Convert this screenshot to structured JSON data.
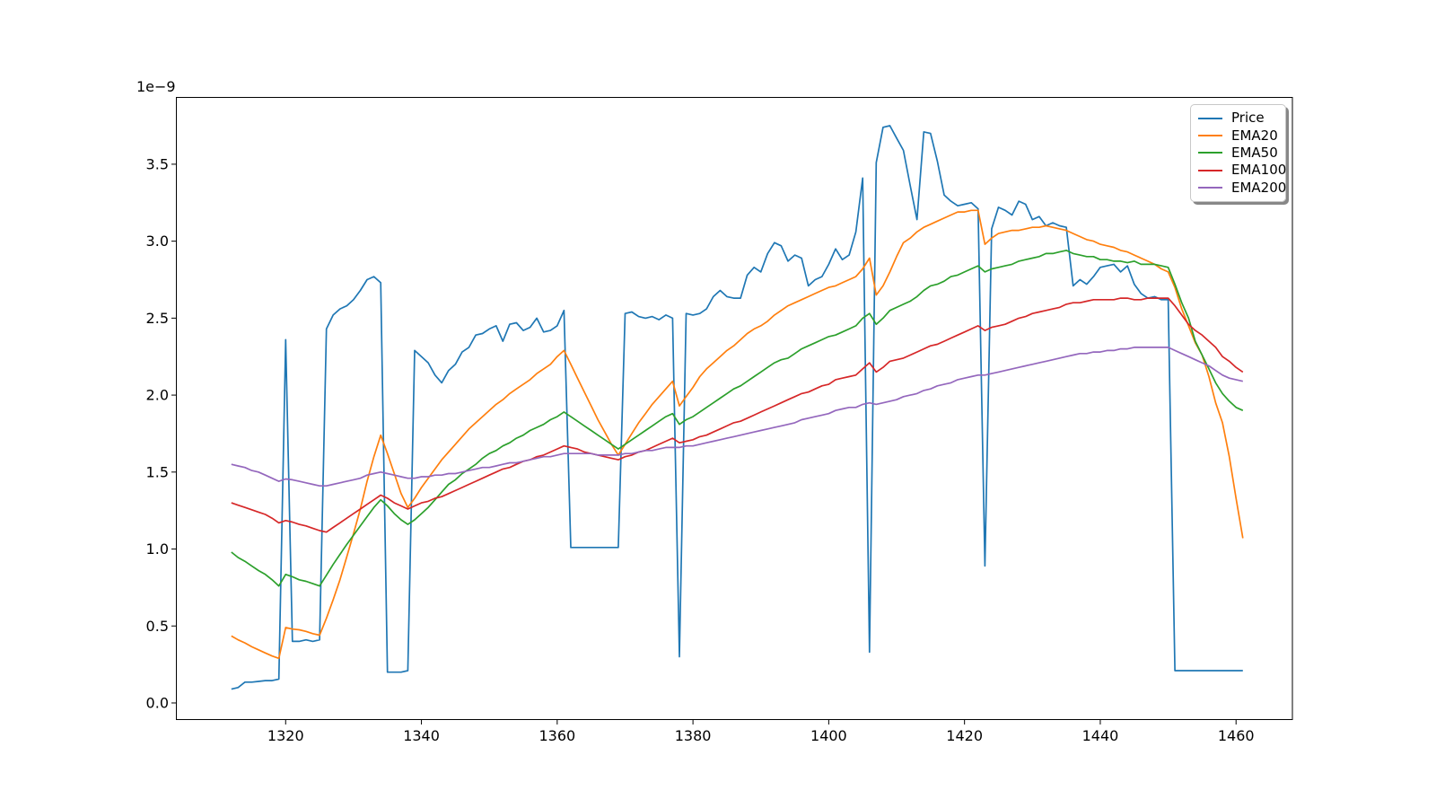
{
  "figure": {
    "background": "#ffffff",
    "axis_color": "#000000",
    "tick_label_color": "#000000"
  },
  "chart_data": {
    "type": "line",
    "title": "",
    "xlabel": "",
    "ylabel": "",
    "y_offset_text": "1e−9",
    "grid": false,
    "legend_position": "upper right",
    "x_ticks": [
      1320,
      1340,
      1360,
      1380,
      1400,
      1420,
      1440,
      1460
    ],
    "y_ticks": [
      0.0,
      0.5,
      1.0,
      1.5,
      2.0,
      2.5,
      3.0,
      3.5
    ],
    "xlim": [
      1303.9,
      1468.3
    ],
    "ylim": [
      -0.108,
      3.934
    ],
    "x_start": 1312,
    "x_step": 1,
    "series": [
      {
        "name": "Price",
        "color": "#1f77b4",
        "values": [
          0.09,
          0.1,
          0.135,
          0.135,
          0.14,
          0.145,
          0.145,
          0.155,
          2.36,
          0.4,
          0.4,
          0.41,
          0.4,
          0.41,
          2.43,
          2.52,
          2.56,
          2.58,
          2.62,
          2.68,
          2.75,
          2.77,
          2.73,
          0.2,
          0.2,
          0.2,
          0.21,
          2.29,
          2.25,
          2.21,
          2.13,
          2.08,
          2.16,
          2.2,
          2.28,
          2.31,
          2.39,
          2.4,
          2.43,
          2.45,
          2.35,
          2.46,
          2.47,
          2.42,
          2.44,
          2.5,
          2.41,
          2.42,
          2.45,
          2.55,
          1.01,
          1.01,
          1.01,
          1.01,
          1.01,
          1.01,
          1.01,
          1.01,
          2.53,
          2.54,
          2.51,
          2.5,
          2.51,
          2.49,
          2.52,
          2.5,
          0.3,
          2.53,
          2.52,
          2.53,
          2.56,
          2.64,
          2.68,
          2.64,
          2.63,
          2.63,
          2.78,
          2.83,
          2.8,
          2.92,
          2.99,
          2.97,
          2.87,
          2.91,
          2.89,
          2.71,
          2.75,
          2.77,
          2.85,
          2.95,
          2.88,
          2.91,
          3.06,
          3.41,
          0.33,
          3.51,
          3.74,
          3.75,
          3.67,
          3.59,
          3.36,
          3.14,
          3.71,
          3.7,
          3.52,
          3.3,
          3.26,
          3.23,
          3.24,
          3.25,
          3.21,
          0.89,
          3.08,
          3.22,
          3.2,
          3.17,
          3.26,
          3.24,
          3.14,
          3.16,
          3.1,
          3.12,
          3.1,
          3.09,
          2.71,
          2.75,
          2.72,
          2.77,
          2.83,
          2.84,
          2.85,
          2.8,
          2.84,
          2.72,
          2.66,
          2.63,
          2.64,
          2.62,
          2.62,
          0.21,
          0.21,
          0.21,
          0.21,
          0.21,
          0.21,
          0.21,
          0.21,
          0.21,
          0.21,
          0.21
        ]
      },
      {
        "name": "EMA20",
        "color": "#ff7f0e",
        "values": [
          0.435,
          0.41,
          0.39,
          0.365,
          0.345,
          0.325,
          0.305,
          0.29,
          0.49,
          0.48,
          0.475,
          0.465,
          0.45,
          0.44,
          0.55,
          0.67,
          0.8,
          0.95,
          1.1,
          1.26,
          1.44,
          1.6,
          1.74,
          1.62,
          1.49,
          1.36,
          1.27,
          1.33,
          1.4,
          1.46,
          1.52,
          1.58,
          1.63,
          1.68,
          1.73,
          1.78,
          1.82,
          1.86,
          1.9,
          1.94,
          1.97,
          2.01,
          2.04,
          2.07,
          2.1,
          2.14,
          2.17,
          2.2,
          2.25,
          2.29,
          2.2,
          2.11,
          2.02,
          1.93,
          1.84,
          1.76,
          1.68,
          1.61,
          1.68,
          1.75,
          1.82,
          1.88,
          1.94,
          1.99,
          2.04,
          2.09,
          1.93,
          1.99,
          2.05,
          2.12,
          2.17,
          2.21,
          2.25,
          2.29,
          2.32,
          2.36,
          2.4,
          2.43,
          2.45,
          2.48,
          2.52,
          2.55,
          2.58,
          2.6,
          2.62,
          2.64,
          2.66,
          2.68,
          2.7,
          2.71,
          2.73,
          2.75,
          2.77,
          2.82,
          2.89,
          2.65,
          2.71,
          2.8,
          2.9,
          2.99,
          3.02,
          3.06,
          3.09,
          3.11,
          3.13,
          3.15,
          3.17,
          3.19,
          3.19,
          3.2,
          3.2,
          2.98,
          3.02,
          3.05,
          3.06,
          3.07,
          3.07,
          3.08,
          3.09,
          3.09,
          3.1,
          3.09,
          3.08,
          3.07,
          3.05,
          3.03,
          3.01,
          3.0,
          2.98,
          2.97,
          2.96,
          2.94,
          2.93,
          2.91,
          2.89,
          2.87,
          2.85,
          2.82,
          2.8,
          2.7,
          2.56,
          2.45,
          2.34,
          2.26,
          2.12,
          1.95,
          1.82,
          1.6,
          1.33,
          1.07
        ]
      },
      {
        "name": "EMA50",
        "color": "#2ca02c",
        "values": [
          0.98,
          0.945,
          0.92,
          0.89,
          0.86,
          0.835,
          0.8,
          0.76,
          0.835,
          0.82,
          0.8,
          0.79,
          0.775,
          0.76,
          0.83,
          0.9,
          0.965,
          1.03,
          1.09,
          1.15,
          1.21,
          1.27,
          1.32,
          1.28,
          1.23,
          1.19,
          1.16,
          1.19,
          1.23,
          1.27,
          1.32,
          1.37,
          1.42,
          1.45,
          1.49,
          1.52,
          1.55,
          1.59,
          1.62,
          1.64,
          1.67,
          1.69,
          1.72,
          1.74,
          1.77,
          1.79,
          1.81,
          1.84,
          1.86,
          1.89,
          1.86,
          1.83,
          1.8,
          1.77,
          1.74,
          1.71,
          1.68,
          1.65,
          1.68,
          1.71,
          1.74,
          1.77,
          1.8,
          1.83,
          1.86,
          1.88,
          1.81,
          1.84,
          1.86,
          1.89,
          1.92,
          1.95,
          1.98,
          2.01,
          2.04,
          2.06,
          2.09,
          2.12,
          2.15,
          2.18,
          2.21,
          2.23,
          2.24,
          2.27,
          2.3,
          2.32,
          2.34,
          2.36,
          2.38,
          2.39,
          2.41,
          2.43,
          2.45,
          2.5,
          2.53,
          2.46,
          2.5,
          2.55,
          2.57,
          2.59,
          2.61,
          2.64,
          2.68,
          2.71,
          2.72,
          2.74,
          2.77,
          2.78,
          2.8,
          2.82,
          2.84,
          2.8,
          2.82,
          2.83,
          2.84,
          2.85,
          2.87,
          2.88,
          2.89,
          2.9,
          2.92,
          2.92,
          2.93,
          2.94,
          2.92,
          2.91,
          2.9,
          2.9,
          2.88,
          2.88,
          2.87,
          2.87,
          2.86,
          2.87,
          2.85,
          2.85,
          2.85,
          2.84,
          2.83,
          2.72,
          2.6,
          2.5,
          2.35,
          2.26,
          2.17,
          2.08,
          2.01,
          1.96,
          1.92,
          1.9
        ]
      },
      {
        "name": "EMA100",
        "color": "#d62728",
        "values": [
          1.3,
          1.285,
          1.27,
          1.255,
          1.24,
          1.225,
          1.2,
          1.17,
          1.185,
          1.175,
          1.16,
          1.15,
          1.135,
          1.12,
          1.11,
          1.14,
          1.17,
          1.2,
          1.23,
          1.26,
          1.29,
          1.32,
          1.35,
          1.33,
          1.3,
          1.28,
          1.26,
          1.28,
          1.3,
          1.31,
          1.33,
          1.34,
          1.36,
          1.38,
          1.4,
          1.42,
          1.44,
          1.46,
          1.48,
          1.5,
          1.52,
          1.53,
          1.55,
          1.57,
          1.58,
          1.6,
          1.61,
          1.63,
          1.65,
          1.67,
          1.66,
          1.65,
          1.63,
          1.62,
          1.61,
          1.6,
          1.59,
          1.58,
          1.6,
          1.61,
          1.63,
          1.64,
          1.66,
          1.68,
          1.7,
          1.72,
          1.69,
          1.7,
          1.71,
          1.73,
          1.74,
          1.76,
          1.78,
          1.8,
          1.82,
          1.83,
          1.85,
          1.87,
          1.89,
          1.91,
          1.93,
          1.95,
          1.97,
          1.99,
          2.01,
          2.02,
          2.04,
          2.06,
          2.07,
          2.1,
          2.11,
          2.12,
          2.13,
          2.17,
          2.21,
          2.15,
          2.18,
          2.22,
          2.23,
          2.24,
          2.26,
          2.28,
          2.3,
          2.32,
          2.33,
          2.35,
          2.37,
          2.39,
          2.41,
          2.43,
          2.45,
          2.42,
          2.44,
          2.45,
          2.46,
          2.48,
          2.5,
          2.51,
          2.53,
          2.54,
          2.55,
          2.56,
          2.57,
          2.59,
          2.6,
          2.6,
          2.61,
          2.62,
          2.62,
          2.62,
          2.62,
          2.63,
          2.63,
          2.62,
          2.62,
          2.63,
          2.63,
          2.63,
          2.63,
          2.58,
          2.52,
          2.46,
          2.42,
          2.39,
          2.35,
          2.31,
          2.25,
          2.22,
          2.18,
          2.15
        ]
      },
      {
        "name": "EMA200",
        "color": "#9467bd",
        "values": [
          1.55,
          1.54,
          1.53,
          1.51,
          1.5,
          1.48,
          1.46,
          1.44,
          1.455,
          1.45,
          1.44,
          1.43,
          1.42,
          1.41,
          1.41,
          1.42,
          1.43,
          1.44,
          1.45,
          1.46,
          1.48,
          1.49,
          1.5,
          1.49,
          1.48,
          1.47,
          1.46,
          1.46,
          1.47,
          1.47,
          1.48,
          1.48,
          1.49,
          1.49,
          1.5,
          1.51,
          1.52,
          1.53,
          1.53,
          1.54,
          1.55,
          1.56,
          1.56,
          1.57,
          1.58,
          1.59,
          1.6,
          1.6,
          1.61,
          1.62,
          1.62,
          1.62,
          1.62,
          1.62,
          1.61,
          1.61,
          1.61,
          1.61,
          1.62,
          1.62,
          1.63,
          1.64,
          1.64,
          1.65,
          1.66,
          1.66,
          1.66,
          1.67,
          1.67,
          1.68,
          1.69,
          1.7,
          1.71,
          1.72,
          1.73,
          1.74,
          1.75,
          1.76,
          1.77,
          1.78,
          1.79,
          1.8,
          1.81,
          1.82,
          1.84,
          1.85,
          1.86,
          1.87,
          1.88,
          1.9,
          1.91,
          1.92,
          1.92,
          1.94,
          1.95,
          1.94,
          1.95,
          1.96,
          1.97,
          1.99,
          2.0,
          2.01,
          2.03,
          2.04,
          2.06,
          2.07,
          2.08,
          2.1,
          2.11,
          2.12,
          2.13,
          2.13,
          2.14,
          2.15,
          2.16,
          2.17,
          2.18,
          2.19,
          2.2,
          2.21,
          2.22,
          2.23,
          2.24,
          2.25,
          2.26,
          2.27,
          2.27,
          2.28,
          2.28,
          2.29,
          2.29,
          2.3,
          2.3,
          2.31,
          2.31,
          2.31,
          2.31,
          2.31,
          2.31,
          2.29,
          2.27,
          2.25,
          2.23,
          2.21,
          2.19,
          2.16,
          2.13,
          2.11,
          2.1,
          2.09
        ]
      }
    ]
  }
}
